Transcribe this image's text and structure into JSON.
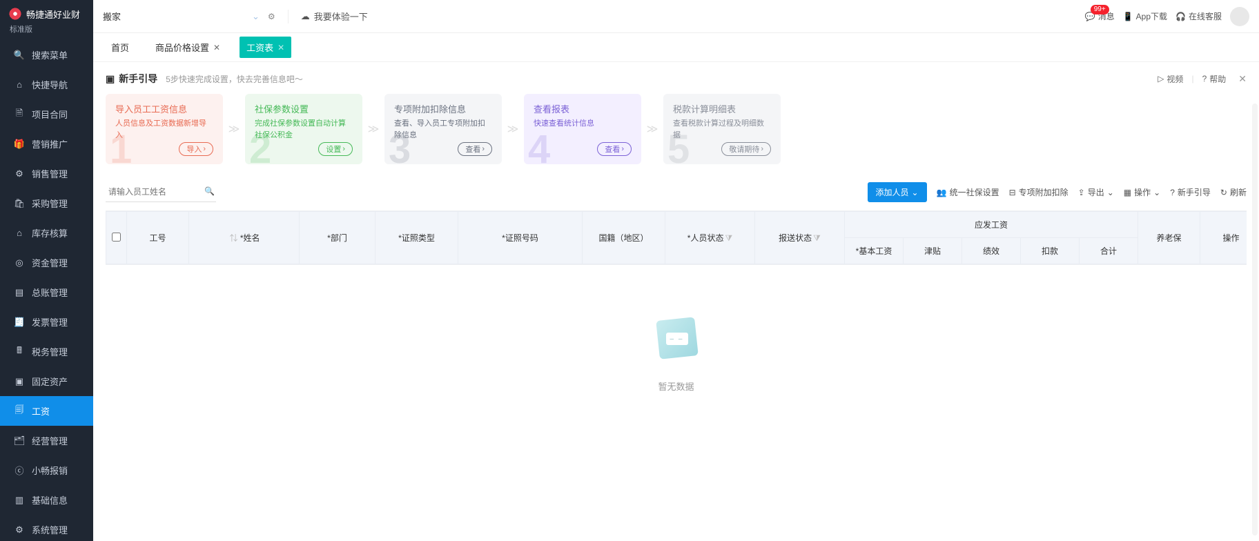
{
  "brand": {
    "name": "畅捷通好业财",
    "edition": "标准版"
  },
  "sidebar": {
    "items": [
      {
        "icon": "search",
        "label": "搜索菜单"
      },
      {
        "icon": "home",
        "label": "快捷导航"
      },
      {
        "icon": "doc",
        "label": "项目合同"
      },
      {
        "icon": "gift",
        "label": "营销推广"
      },
      {
        "icon": "cart",
        "label": "销售管理"
      },
      {
        "icon": "bag",
        "label": "采购管理"
      },
      {
        "icon": "house",
        "label": "库存核算"
      },
      {
        "icon": "coin",
        "label": "资金管理"
      },
      {
        "icon": "ledger",
        "label": "总账管理"
      },
      {
        "icon": "invoice",
        "label": "发票管理"
      },
      {
        "icon": "tax",
        "label": "税务管理"
      },
      {
        "icon": "asset",
        "label": "固定资产"
      },
      {
        "icon": "salary",
        "label": "工资"
      },
      {
        "icon": "ops",
        "label": "经营管理"
      },
      {
        "icon": "reimb",
        "label": "小畅报销"
      },
      {
        "icon": "base",
        "label": "基础信息"
      },
      {
        "icon": "sys",
        "label": "系统管理"
      }
    ],
    "active_index": 12
  },
  "topbar": {
    "org": "搬家",
    "try_label": "我要体验一下",
    "msg_label": "消息",
    "msg_badge": "99+",
    "download_label": "App下载",
    "service_label": "在线客服"
  },
  "tabs": {
    "items": [
      {
        "label": "首页",
        "closable": false
      },
      {
        "label": "商品价格设置",
        "closable": true
      },
      {
        "label": "工资表",
        "closable": true
      }
    ],
    "active_index": 2
  },
  "guide": {
    "title": "新手引导",
    "subtitle": "5步快速完成设置，快去完善信息吧～",
    "video_label": "视频",
    "help_label": "帮助",
    "cards": [
      {
        "title": "导入员工工资信息",
        "desc": "人员信息及工资数据新增导入",
        "btn": "导入",
        "bg": "#fdf1ef",
        "color": "#e86a52"
      },
      {
        "title": "社保参数设置",
        "desc": "完成社保参数设置自动计算社保公积金",
        "btn": "设置",
        "bg": "#edf8ee",
        "color": "#45b957"
      },
      {
        "title": "专项附加扣除信息",
        "desc": "查看、导入员工专项附加扣除信息",
        "btn": "查看",
        "bg": "#f4f5f7",
        "color": "#6b7280"
      },
      {
        "title": "查看报表",
        "desc": "快速查看统计信息",
        "btn": "查看",
        "bg": "#f3efff",
        "color": "#7b61d6"
      },
      {
        "title": "税款计算明细表",
        "desc": "查看税款计算过程及明细数据",
        "btn": "敬请期待",
        "bg": "#f4f5f7",
        "color": "#8a8f9a"
      }
    ]
  },
  "toolbar": {
    "search_placeholder": "请输入员工姓名",
    "add_label": "添加人员",
    "ss_setting_label": "统一社保设置",
    "deduct_label": "专项附加扣除",
    "export_label": "导出",
    "ops_label": "操作",
    "guide_label": "新手引导",
    "refresh_label": "刷新"
  },
  "table": {
    "group_header": "应发工资",
    "columns_left": [
      "工号",
      "*姓名",
      "*部门",
      "*证照类型",
      "*证照号码",
      "国籍（地区）",
      "*人员状态",
      "报送状态"
    ],
    "columns_group": [
      "*基本工资",
      "津贴",
      "绩效",
      "扣款",
      "合计"
    ],
    "columns_right": [
      "养老保",
      "操作"
    ],
    "empty_text": "暂无数据"
  }
}
